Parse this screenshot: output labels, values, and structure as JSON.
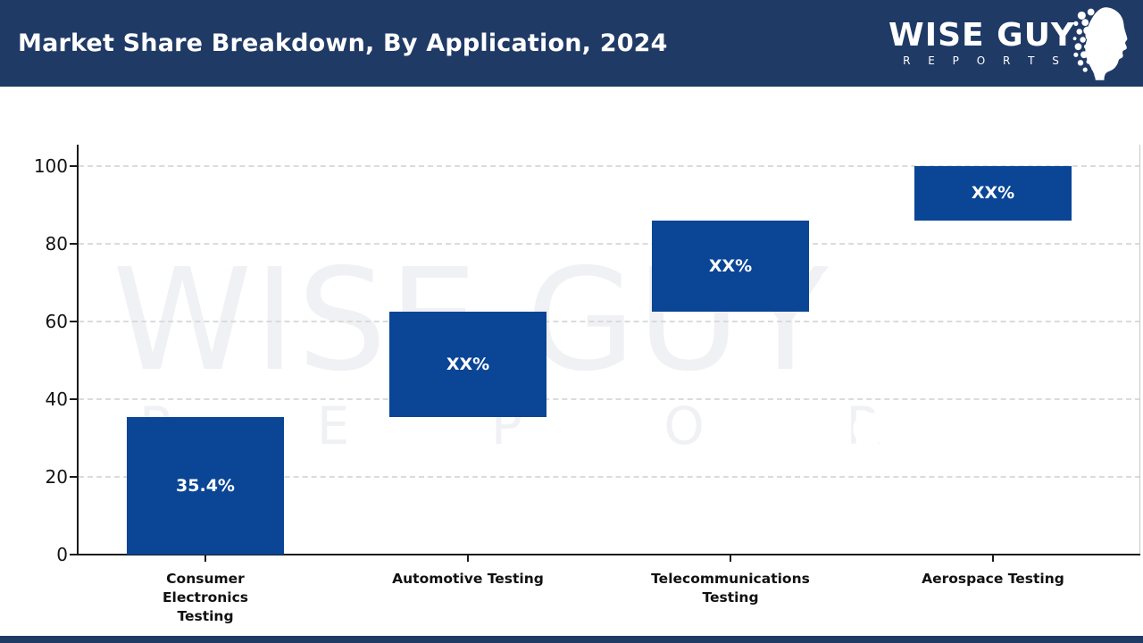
{
  "header": {
    "title": "Market Share Breakdown, By Application, 2024",
    "brand_line1": "WISE GUY",
    "brand_line2": "R E P O R T S"
  },
  "watermark": {
    "line1": "WISE GUY",
    "line2": "R E P O R T S"
  },
  "chart_data": {
    "type": "bar",
    "subtype": "waterfall-floating-bars",
    "title": "Market Share Breakdown, By Application, 2024",
    "categories": [
      "Consumer Electronics Testing",
      "Automotive Testing",
      "Telecommunications Testing",
      "Aerospace Testing"
    ],
    "segments": [
      {
        "category_display": "Consumer\nElectronics\nTesting",
        "start": 0,
        "end": 35.4,
        "label": "35.4%"
      },
      {
        "category_display": "Automotive Testing",
        "start": 35.4,
        "end": 62.5,
        "label": "XX%"
      },
      {
        "category_display": "Telecommunications\nTesting",
        "start": 62.5,
        "end": 86,
        "label": "XX%"
      },
      {
        "category_display": "Aerospace Testing",
        "start": 86,
        "end": 100,
        "label": "XX%"
      }
    ],
    "ylim": [
      0,
      100
    ],
    "yticks": [
      0,
      20,
      40,
      60,
      80,
      100
    ],
    "grid": "horizontal-dashed",
    "legend": "none",
    "xlabel": "",
    "ylabel": "",
    "bar_color": "#0a4596",
    "bar_label_color": "#ffffff"
  },
  "colors": {
    "header_bg": "#203a66",
    "footer_bg": "#203a66",
    "bar": "#0a4596",
    "gridline": "#dbdbdb",
    "axis": "#1a1a1a",
    "watermark": "#f0f1f4",
    "title_text": "#ffffff"
  }
}
